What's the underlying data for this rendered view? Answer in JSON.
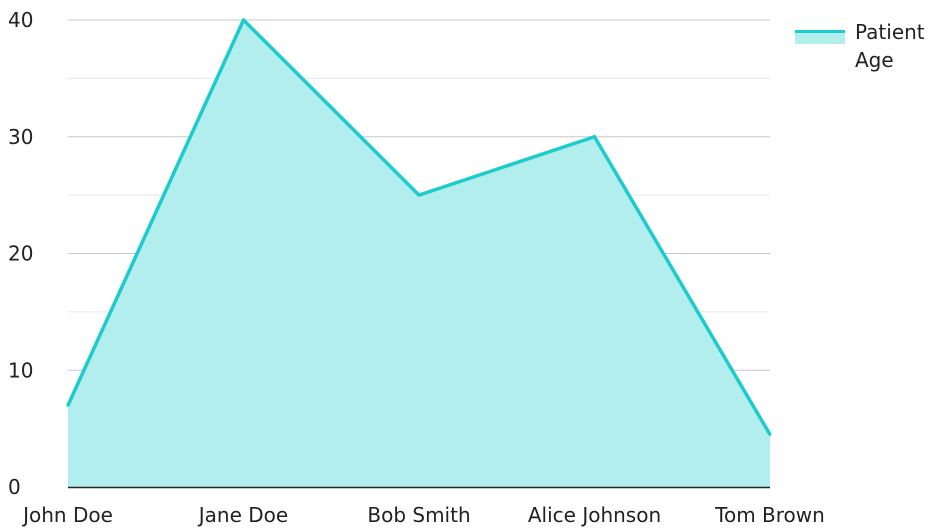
{
  "chart_data": {
    "type": "area",
    "categories": [
      "John Doe",
      "Jane Doe",
      "Bob Smith",
      "Alice Johnson",
      "Tom Brown"
    ],
    "series": [
      {
        "name": "Patient Age",
        "values": [
          7,
          40,
          25,
          30,
          4.5
        ]
      }
    ],
    "title": "",
    "xlabel": "",
    "ylabel": "",
    "ylim": [
      0,
      40
    ],
    "yticks": [
      0,
      10,
      20,
      30,
      40
    ],
    "grid": true,
    "legend_position": "top-right",
    "colors": {
      "line": "#1ccbcc",
      "fill": "#b2eeee",
      "grid": "#c8c8c8",
      "minor_grid": "#e6e6e6",
      "axis": "#222222"
    }
  }
}
